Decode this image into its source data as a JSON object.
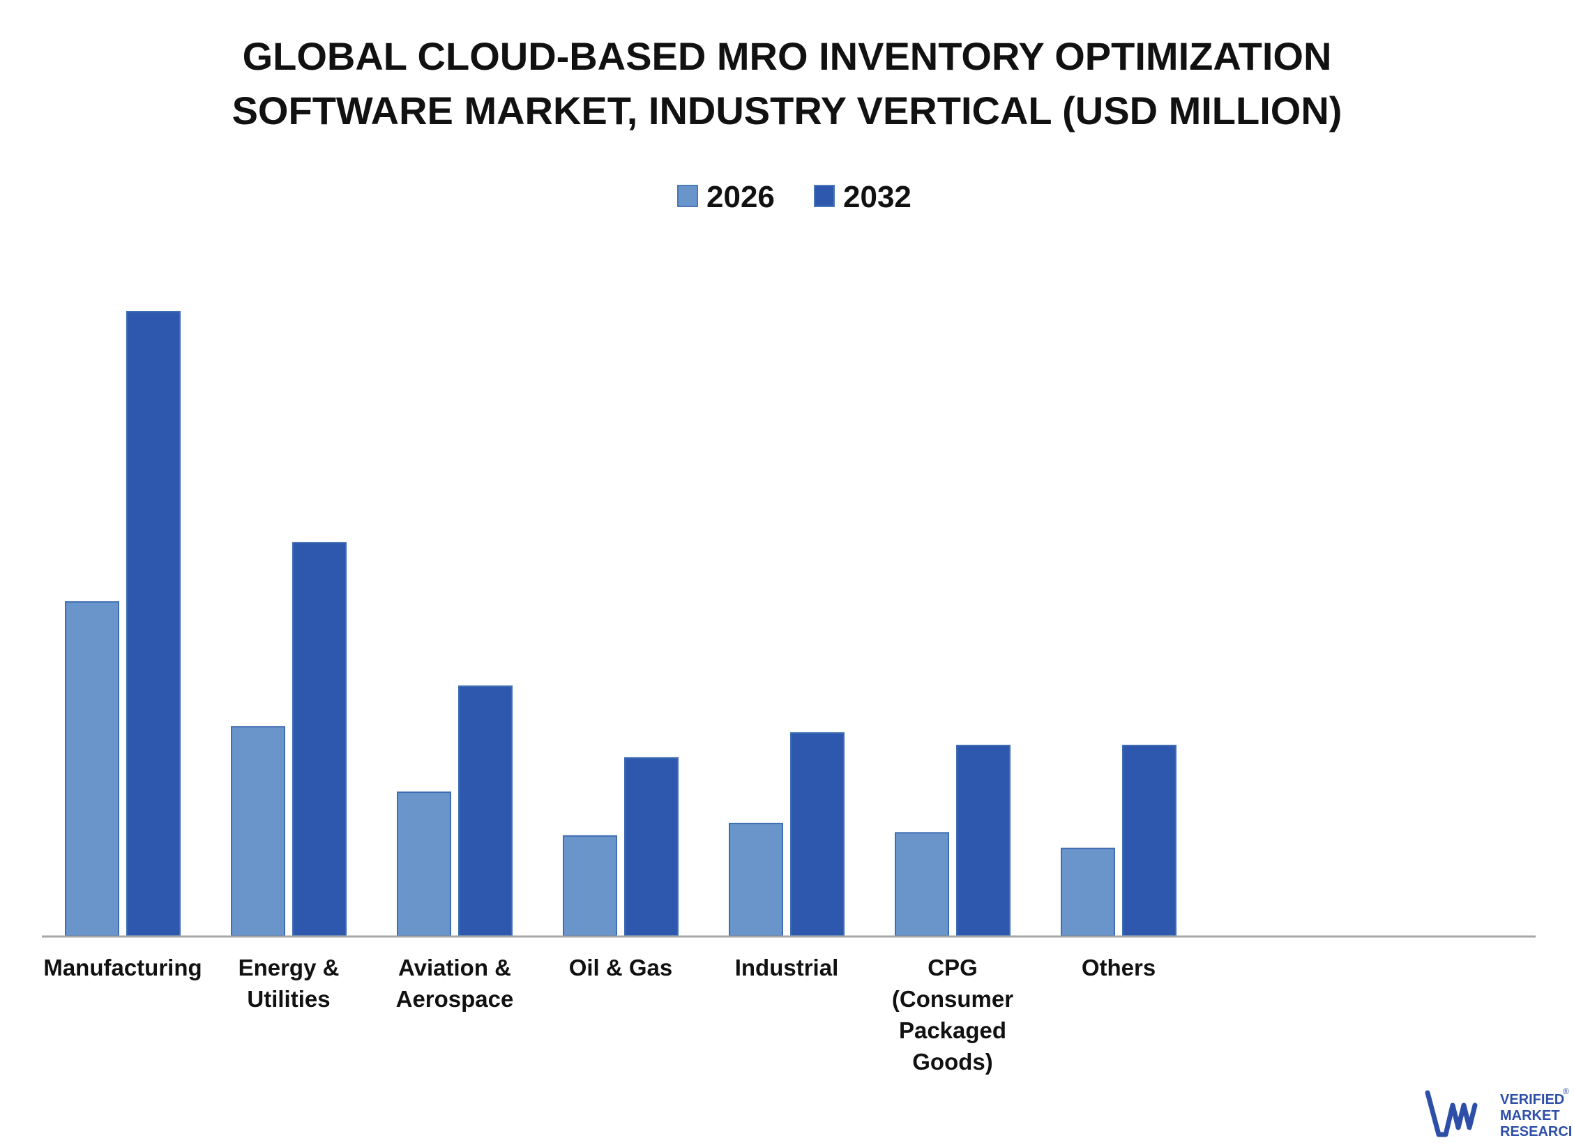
{
  "chart_data": {
    "type": "bar",
    "title_lines": [
      "GLOBAL CLOUD-BASED MRO INVENTORY OPTIMIZATION",
      "SOFTWARE MARKET, INDUSTRY VERTICAL (USD MILLION)"
    ],
    "categories": [
      [
        "Manufacturing"
      ],
      [
        "Energy &",
        "Utilities"
      ],
      [
        "Aviation &",
        "Aerospace"
      ],
      [
        "Oil & Gas"
      ],
      [
        "Industrial"
      ],
      [
        "CPG",
        "(Consumer",
        "Packaged",
        "Goods)"
      ],
      [
        "Others"
      ]
    ],
    "series": [
      {
        "name": "2026",
        "color": "#6a95cb",
        "values": [
          53.5,
          33.5,
          23,
          16,
          18,
          16.5,
          14
        ]
      },
      {
        "name": "2032",
        "color": "#2e58ad",
        "values": [
          100,
          63,
          40,
          28.5,
          32.5,
          30.5,
          30.5
        ]
      }
    ],
    "ylim": [
      0,
      100
    ],
    "grid": false,
    "legend_position": "top-center",
    "axis_color": "#a6a6a6"
  },
  "brand": {
    "name_lines": [
      "VERIFIED",
      "MARKET",
      "RESEARCH"
    ],
    "registered_mark": "®",
    "color": "#2e4fa8"
  }
}
